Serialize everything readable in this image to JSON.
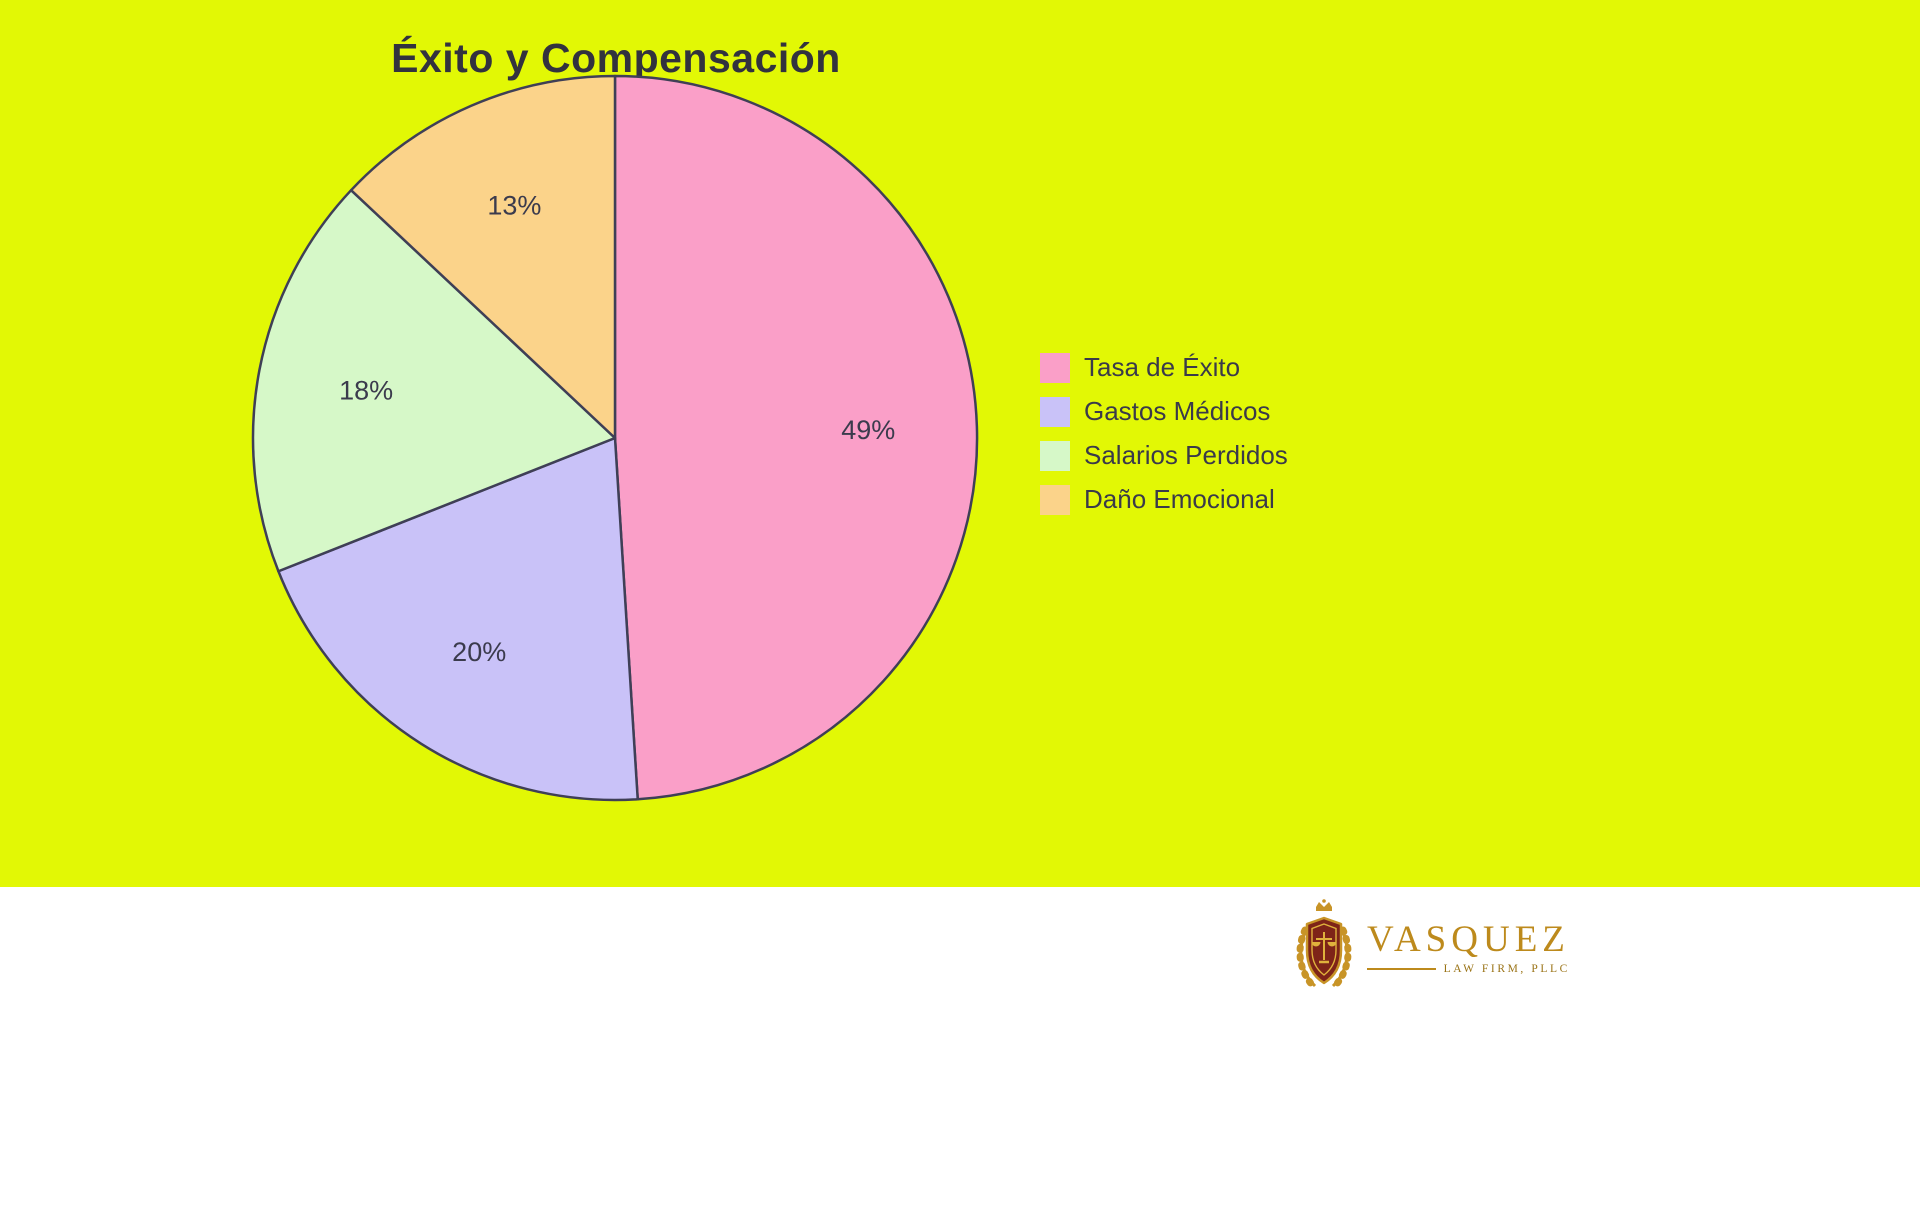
{
  "page": {
    "background_color": "#E2F805",
    "footer_background": "#FFFFFF",
    "text_color": "#3A3A4A"
  },
  "chart_data": {
    "type": "pie",
    "title": "Éxito y Compensación",
    "labels": [
      "Tasa de Éxito",
      "Gastos Médicos",
      "Salarios Perdidos",
      "Daño Emocional"
    ],
    "values": [
      49,
      20,
      18,
      13
    ],
    "value_labels": [
      "49%",
      "20%",
      "18%",
      "13%"
    ],
    "colors": [
      "#FA9FC8",
      "#C9C2F8",
      "#D6F8C8",
      "#FBD38A"
    ],
    "stroke_color": "#3F3F56",
    "start_angle_deg": -90,
    "direction": "clockwise",
    "legend_position": "right"
  },
  "footer": {
    "brand_name": "VASQUEZ",
    "brand_subtitle": "LAW FIRM, PLLC",
    "logo_icon": "laurel-crest-icon",
    "brand_gold": "#BD8A1C",
    "shield_color": "#7E2418"
  }
}
